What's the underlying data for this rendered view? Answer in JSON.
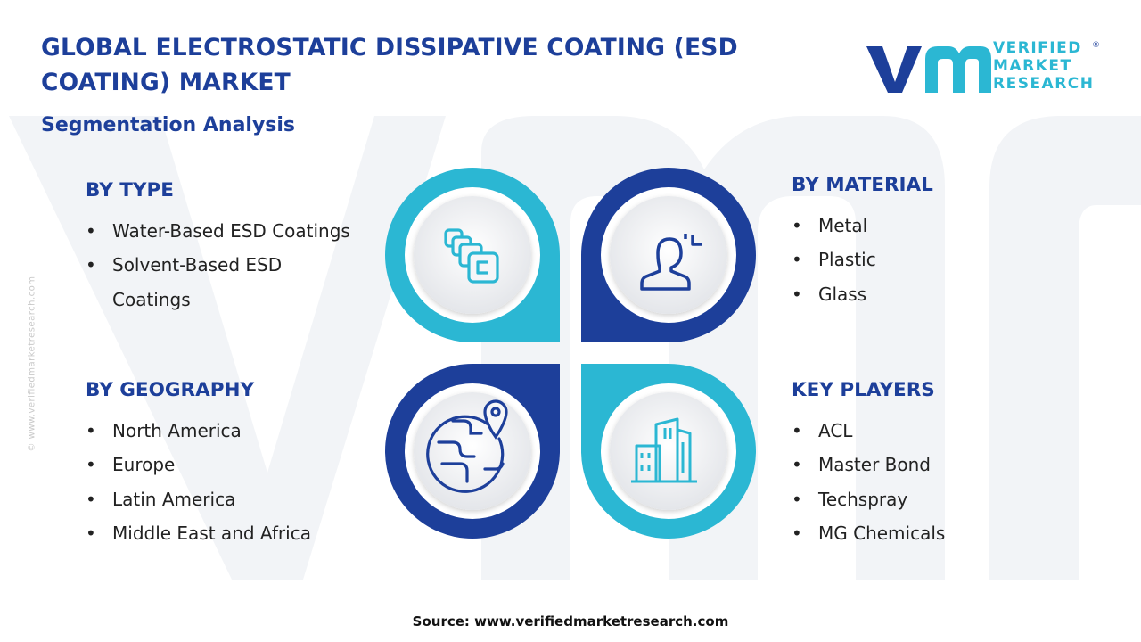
{
  "header": {
    "title": "GLOBAL ELECTROSTATIC DISSIPATIVE COATING (ESD COATING) MARKET",
    "subtitle": "Segmentation Analysis"
  },
  "logo": {
    "line1": "VERIFIED",
    "line2": "MARKET",
    "line3": "RESEARCH",
    "registered": "®"
  },
  "side_text": "© www.verifiedmarketresearch.com",
  "segments": {
    "type": {
      "heading": "BY TYPE",
      "items": [
        "Water-Based ESD Coatings",
        "Solvent-Based ESD Coatings"
      ]
    },
    "material": {
      "heading": "BY MATERIAL",
      "items": [
        "Metal",
        "Plastic",
        "Glass"
      ]
    },
    "geography": {
      "heading": "BY GEOGRAPHY",
      "items": [
        "North America",
        "Europe",
        "Latin America",
        "Middle East and Africa"
      ]
    },
    "players": {
      "heading": "KEY PLAYERS",
      "items": [
        "ACL",
        "Master Bond",
        "Techspray",
        "MG Chemicals"
      ]
    }
  },
  "icons": {
    "type": "coating-layers-icon",
    "material": "person-focus-icon",
    "geography": "globe-location-icon",
    "players": "city-buildings-icon"
  },
  "colors": {
    "navy": "#1d3f9a",
    "cyan": "#2bb7d3",
    "text": "#222222"
  },
  "footer": {
    "source": "Source: www.verifiedmarketresearch.com"
  }
}
